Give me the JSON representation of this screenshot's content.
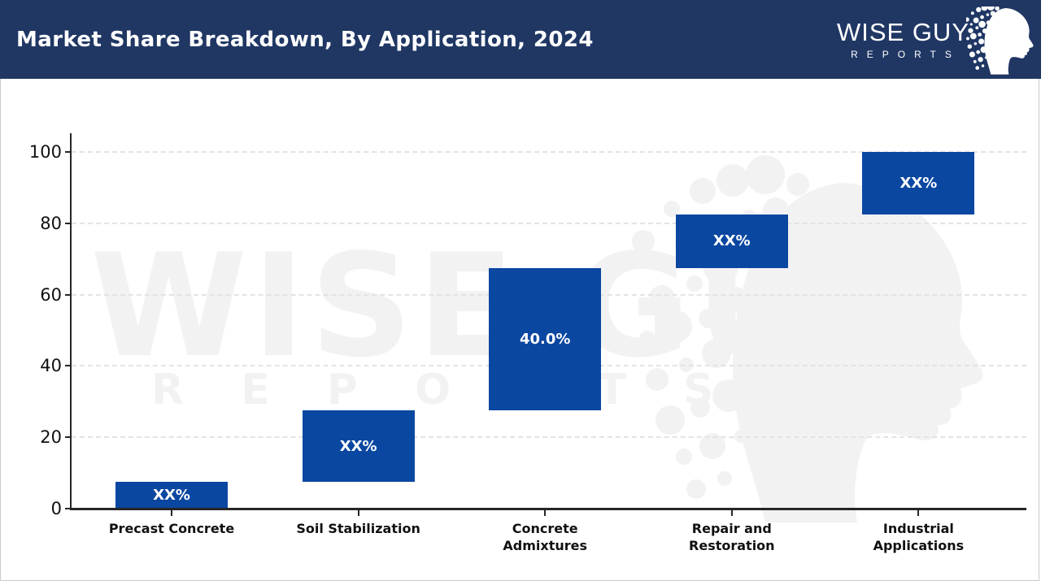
{
  "header": {
    "title": "Market Share Breakdown, By Application, 2024",
    "bg_color": "#203764",
    "logo": {
      "line1": "WISE GUY",
      "line2": "REPORTS"
    }
  },
  "watermark": {
    "line1": "WISE GUY",
    "line2": "R E P O R T S"
  },
  "chart_data": {
    "type": "bar",
    "subtype": "floating-range-bar",
    "title": "Market Share Breakdown, By Application, 2024",
    "categories": [
      "Precast Concrete",
      "Soil Stabilization",
      "Concrete\nAdmixtures",
      "Repair and\nRestoration",
      "Industrial\nApplications"
    ],
    "series": [
      {
        "name": "Market share segment (stacked range, %)",
        "ranges": [
          [
            0,
            7.5
          ],
          [
            7.5,
            27.5
          ],
          [
            27.5,
            67.5
          ],
          [
            67.5,
            82.5
          ],
          [
            82.5,
            100
          ]
        ],
        "labels": [
          "XX%",
          "XX%",
          "40.0%",
          "XX%",
          "XX%"
        ]
      }
    ],
    "xlabel": "",
    "ylabel": "",
    "yticks": [
      0,
      20,
      40,
      60,
      80,
      100
    ],
    "ylim": [
      0,
      105
    ],
    "grid": "horizontal-dashed",
    "legend": "none",
    "bar_color": "#0a47a1",
    "label_color": "#ffffff",
    "gridline_color": "#e3e3e3",
    "axis_color": "#262626"
  }
}
